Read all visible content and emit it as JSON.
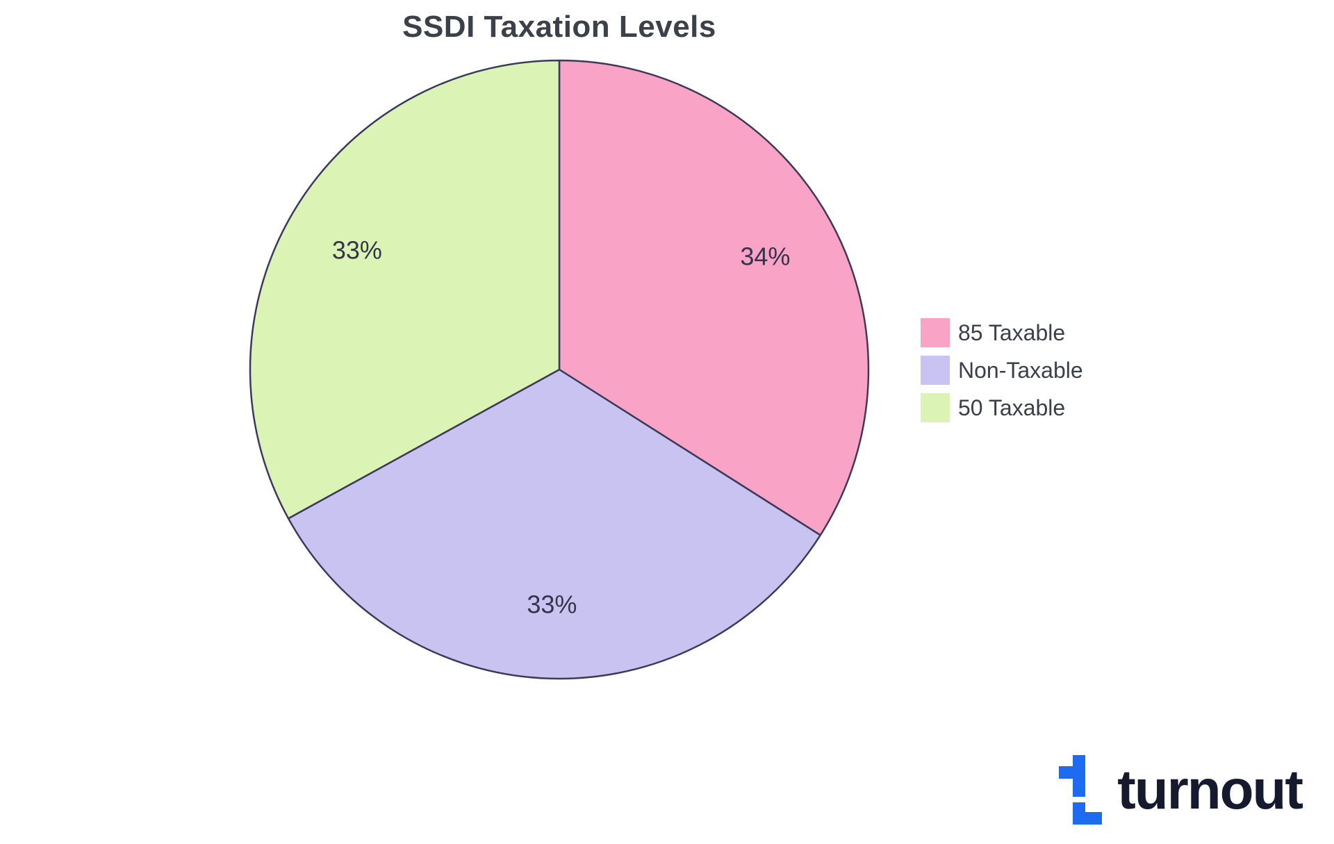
{
  "page": {
    "background": "#FFFFFF"
  },
  "chart_data": {
    "type": "pie",
    "title": "SSDI Taxation Levels",
    "slices": [
      {
        "label": "85 Taxable",
        "value": 34,
        "percent_label": "34%",
        "color": "#F9A3C6"
      },
      {
        "label": "Non-Taxable",
        "value": 33,
        "percent_label": "33%",
        "color": "#C9C3F1"
      },
      {
        "label": "50 Taxable",
        "value": 33,
        "percent_label": "33%",
        "color": "#DBF4B5"
      }
    ],
    "start_angle": "top",
    "direction": "clockwise",
    "slice_stroke_color": "#3C3A5A",
    "slice_stroke_width": 2.5,
    "percent_label_color": "#34344A",
    "legend_position": "right",
    "grid": false
  },
  "branding": {
    "logo_text": "turnout",
    "logo_icon": "turnout-t-icon",
    "logo_icon_color": "#1E6BF2",
    "logo_text_color": "#161A2E"
  }
}
